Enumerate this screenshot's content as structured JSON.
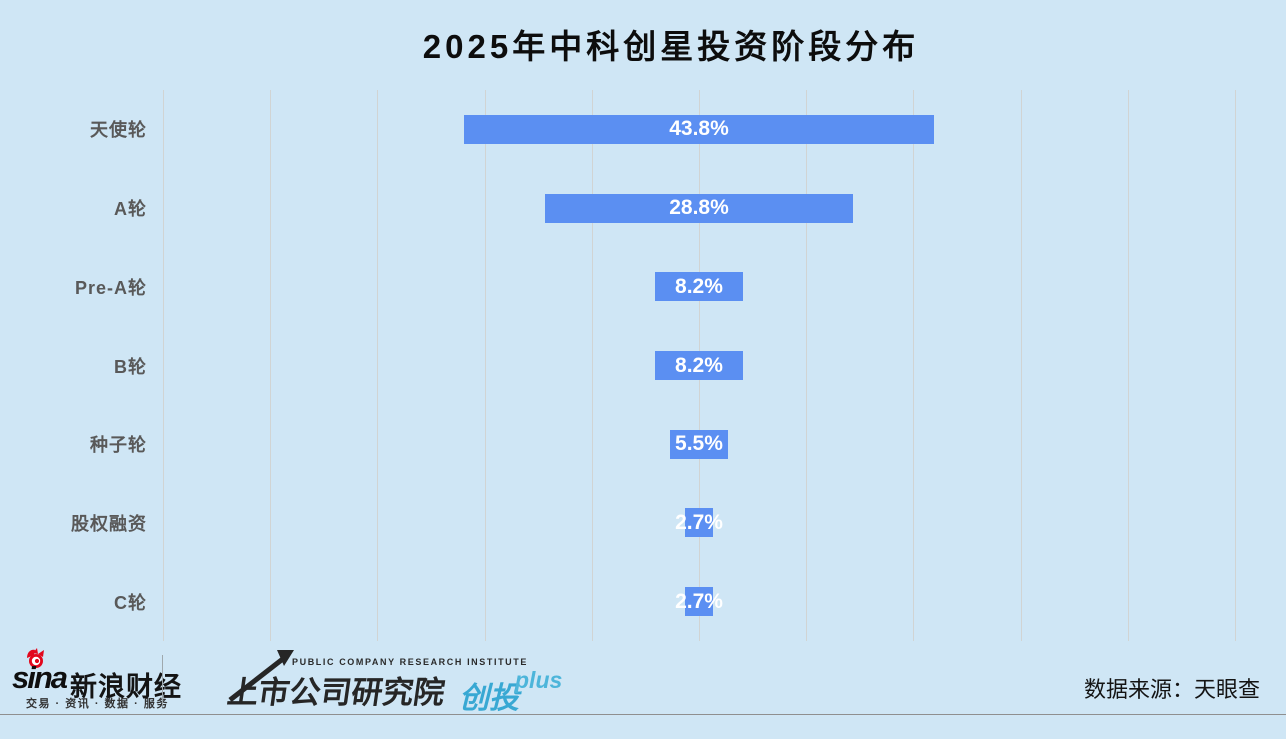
{
  "chart_data": {
    "type": "bar",
    "orientation": "horizontal-centered",
    "title": "2025年中科创星投资阶段分布",
    "categories": [
      "天使轮",
      "A轮",
      "Pre-A轮",
      "B轮",
      "种子轮",
      "股权融资",
      "C轮"
    ],
    "values": [
      43.8,
      28.8,
      8.2,
      8.2,
      5.5,
      2.7,
      2.7
    ],
    "value_labels": [
      "43.8%",
      "28.8%",
      "8.2%",
      "8.2%",
      "5.5%",
      "2.7%",
      "2.7%"
    ],
    "xlabel": "",
    "ylabel": "",
    "xlim": [
      0,
      100
    ],
    "grid": true,
    "gridline_interval_pct": 10,
    "legend": "none",
    "bar_color": "#5b8ff2",
    "value_label_color": "#ffffff",
    "category_label_color": "#595959",
    "background_color": "#cfe6f5"
  },
  "footer": {
    "sina_word": "sina",
    "sina_brand": "新浪财经",
    "sina_tagline": "交易 · 资讯 · 数据 · 服务",
    "institute_en": "PUBLIC COMPANY RESEARCH INSTITUTE",
    "institute_cn": "上市公司研究院",
    "sub_brand": "创投",
    "sub_brand_suffix": "plus",
    "data_source": "数据来源：天眼查"
  }
}
